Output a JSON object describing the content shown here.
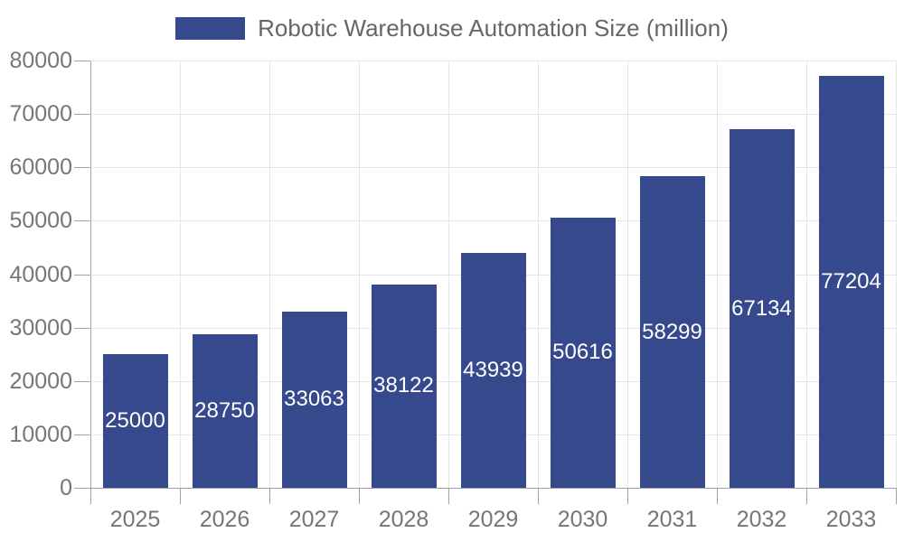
{
  "colors": {
    "bar": "#35498C",
    "grid": "#e4e4ea",
    "axis": "#a0a0a6",
    "axis_label": "#76767a",
    "legend_text": "#666666",
    "bar_label": "#ffffff",
    "background": "#ffffff"
  },
  "legend": {
    "label": "Robotic Warehouse Automation Size (million)"
  },
  "chart_data": {
    "type": "bar",
    "title": "Robotic Warehouse Automation Size (million)",
    "categories": [
      "2025",
      "2026",
      "2027",
      "2028",
      "2029",
      "2030",
      "2031",
      "2032",
      "2033"
    ],
    "values": [
      25000,
      28750,
      33063,
      38122,
      43939,
      50616,
      58299,
      67134,
      77204
    ],
    "xlabel": "",
    "ylabel": "",
    "ylim": [
      0,
      80000
    ],
    "yticks": [
      0,
      10000,
      20000,
      30000,
      40000,
      50000,
      60000,
      70000,
      80000
    ],
    "grid": true,
    "legend_position": "top-center",
    "bar_label_position": "inside-middle",
    "bar_label_color": "#ffffff"
  }
}
